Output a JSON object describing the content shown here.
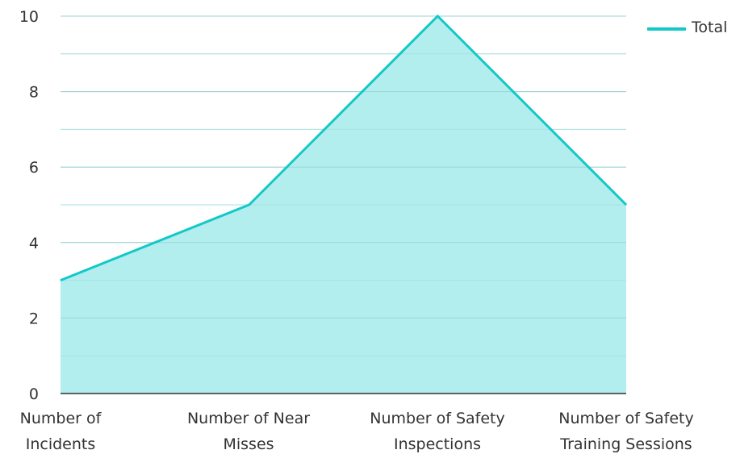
{
  "chart_data": {
    "type": "area",
    "title": "",
    "xlabel": "",
    "ylabel": "",
    "categories": [
      [
        "Number of",
        "Incidents"
      ],
      [
        "Number of Near",
        "Misses"
      ],
      [
        "Number of Safety",
        "Inspections"
      ],
      [
        "Number of Safety",
        "Training Sessions"
      ]
    ],
    "series": [
      {
        "name": "Total",
        "values": [
          3,
          5,
          10,
          5
        ],
        "color": "#14c8c8",
        "fill": "#b2eeee"
      }
    ],
    "ylim": [
      0,
      10
    ],
    "yticks": [
      "0",
      "2",
      "4",
      "6",
      "8",
      "10"
    ],
    "grid": true,
    "legend": {
      "position": "top-right",
      "labels": [
        "Total"
      ]
    }
  }
}
